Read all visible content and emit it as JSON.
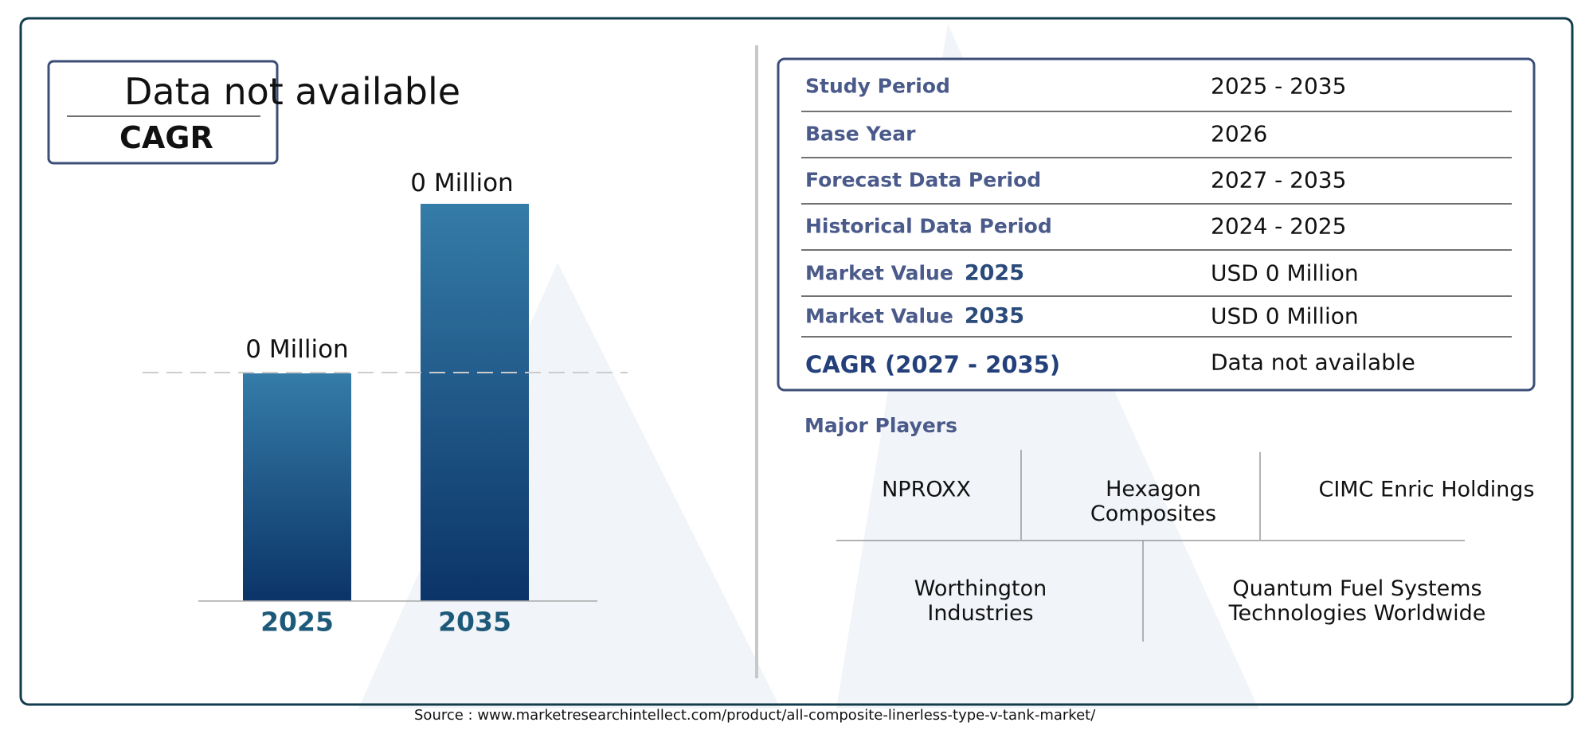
{
  "cagr_box": {
    "value": "Data not available",
    "label": "CAGR"
  },
  "chart": {
    "bars": [
      {
        "value_label": "0 Million",
        "year": "2025"
      },
      {
        "value_label": "0 Million",
        "year": "2035"
      }
    ]
  },
  "table": {
    "rows": [
      {
        "label": "Study Period",
        "value": "2025 - 2035"
      },
      {
        "label": "Base Year",
        "value": "2026"
      },
      {
        "label": "Forecast Data Period",
        "value": "2027 - 2035"
      },
      {
        "label": "Historical Data Period",
        "value": "2024 - 2025"
      },
      {
        "label": "Market Value",
        "year": "2025",
        "value": "USD 0 Million"
      },
      {
        "label": "Market Value",
        "year": "2035",
        "value": "USD 0 Million"
      },
      {
        "label": "CAGR (2027 - 2035)",
        "value": "Data not available"
      }
    ]
  },
  "major_players": {
    "title": "Major Players",
    "names": [
      "NPROXX",
      "Hexagon Composites",
      "CIMC Enric Holdings",
      "Worthington Industries",
      "Quantum Fuel Systems Technologies Worldwide"
    ]
  },
  "source": "Source : www.marketresearchintellect.com/product/all-composite-linerless-type-v-tank-market/"
}
